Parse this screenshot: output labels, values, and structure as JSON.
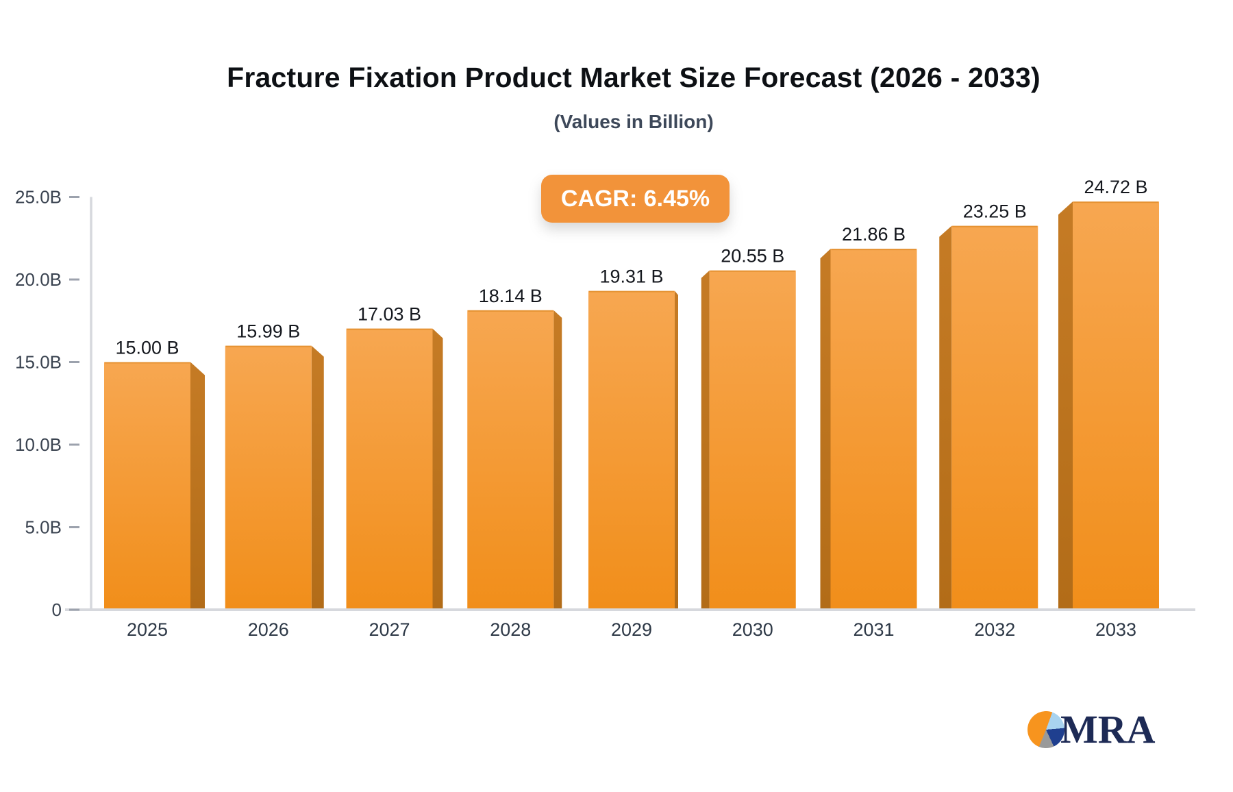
{
  "title": "Fracture Fixation Product Market Size Forecast (2026 - 2033)",
  "subtitle": "(Values in Billion)",
  "cagr_badge": {
    "label": "CAGR: 6.45%"
  },
  "logo": {
    "text": "MRA"
  },
  "colors": {
    "badge_bg": "#F2933A",
    "badge_text": "#FFFFFF",
    "bar_front_top": "#F7A751",
    "bar_front_bottom": "#F18E1A",
    "bar_side_top": "#C57B25",
    "bar_side_bottom": "#B26C18",
    "bar_top_edge": "#DE8A26",
    "axis_line": "#D6D8DD",
    "tick_mark": "#9CA2AD",
    "tick_label": "#3A4350",
    "value_label": "#14171D",
    "year_label": "#2E3947",
    "title_text": "#0D1014",
    "subtitle_text": "#3D4859",
    "logo_text": "#1D2A55",
    "logo_pie_orange": "#F7941E",
    "logo_pie_lightblue": "#A9D3EF",
    "logo_pie_navy": "#1F3F8F",
    "logo_pie_gray": "#9A9A9A"
  },
  "chart_data": {
    "type": "bar",
    "title": "Fracture Fixation Product Market Size Forecast (2026 - 2033)",
    "subtitle": "(Values in Billion)",
    "annotation": "CAGR: 6.45%",
    "categories": [
      "2025",
      "2026",
      "2027",
      "2028",
      "2029",
      "2030",
      "2031",
      "2032",
      "2033"
    ],
    "values": [
      15.0,
      15.99,
      17.03,
      18.14,
      19.31,
      20.55,
      21.86,
      23.25,
      24.72
    ],
    "value_labels": [
      "15.00 B",
      "15.99 B",
      "17.03 B",
      "18.14 B",
      "19.31 B",
      "20.55 B",
      "21.86 B",
      "23.25 B",
      "24.72 B"
    ],
    "xlabel": "",
    "ylabel": "",
    "ylim": [
      0,
      25
    ],
    "y_ticks": [
      {
        "value": 0,
        "label": "0"
      },
      {
        "value": 5,
        "label": "5.0B"
      },
      {
        "value": 10,
        "label": "10.0B"
      },
      {
        "value": 15,
        "label": "15.0B"
      },
      {
        "value": 20,
        "label": "20.0B"
      },
      {
        "value": 25,
        "label": "25.0B"
      }
    ],
    "grid": false,
    "legend": false,
    "style": "3d-perspective-bars"
  }
}
